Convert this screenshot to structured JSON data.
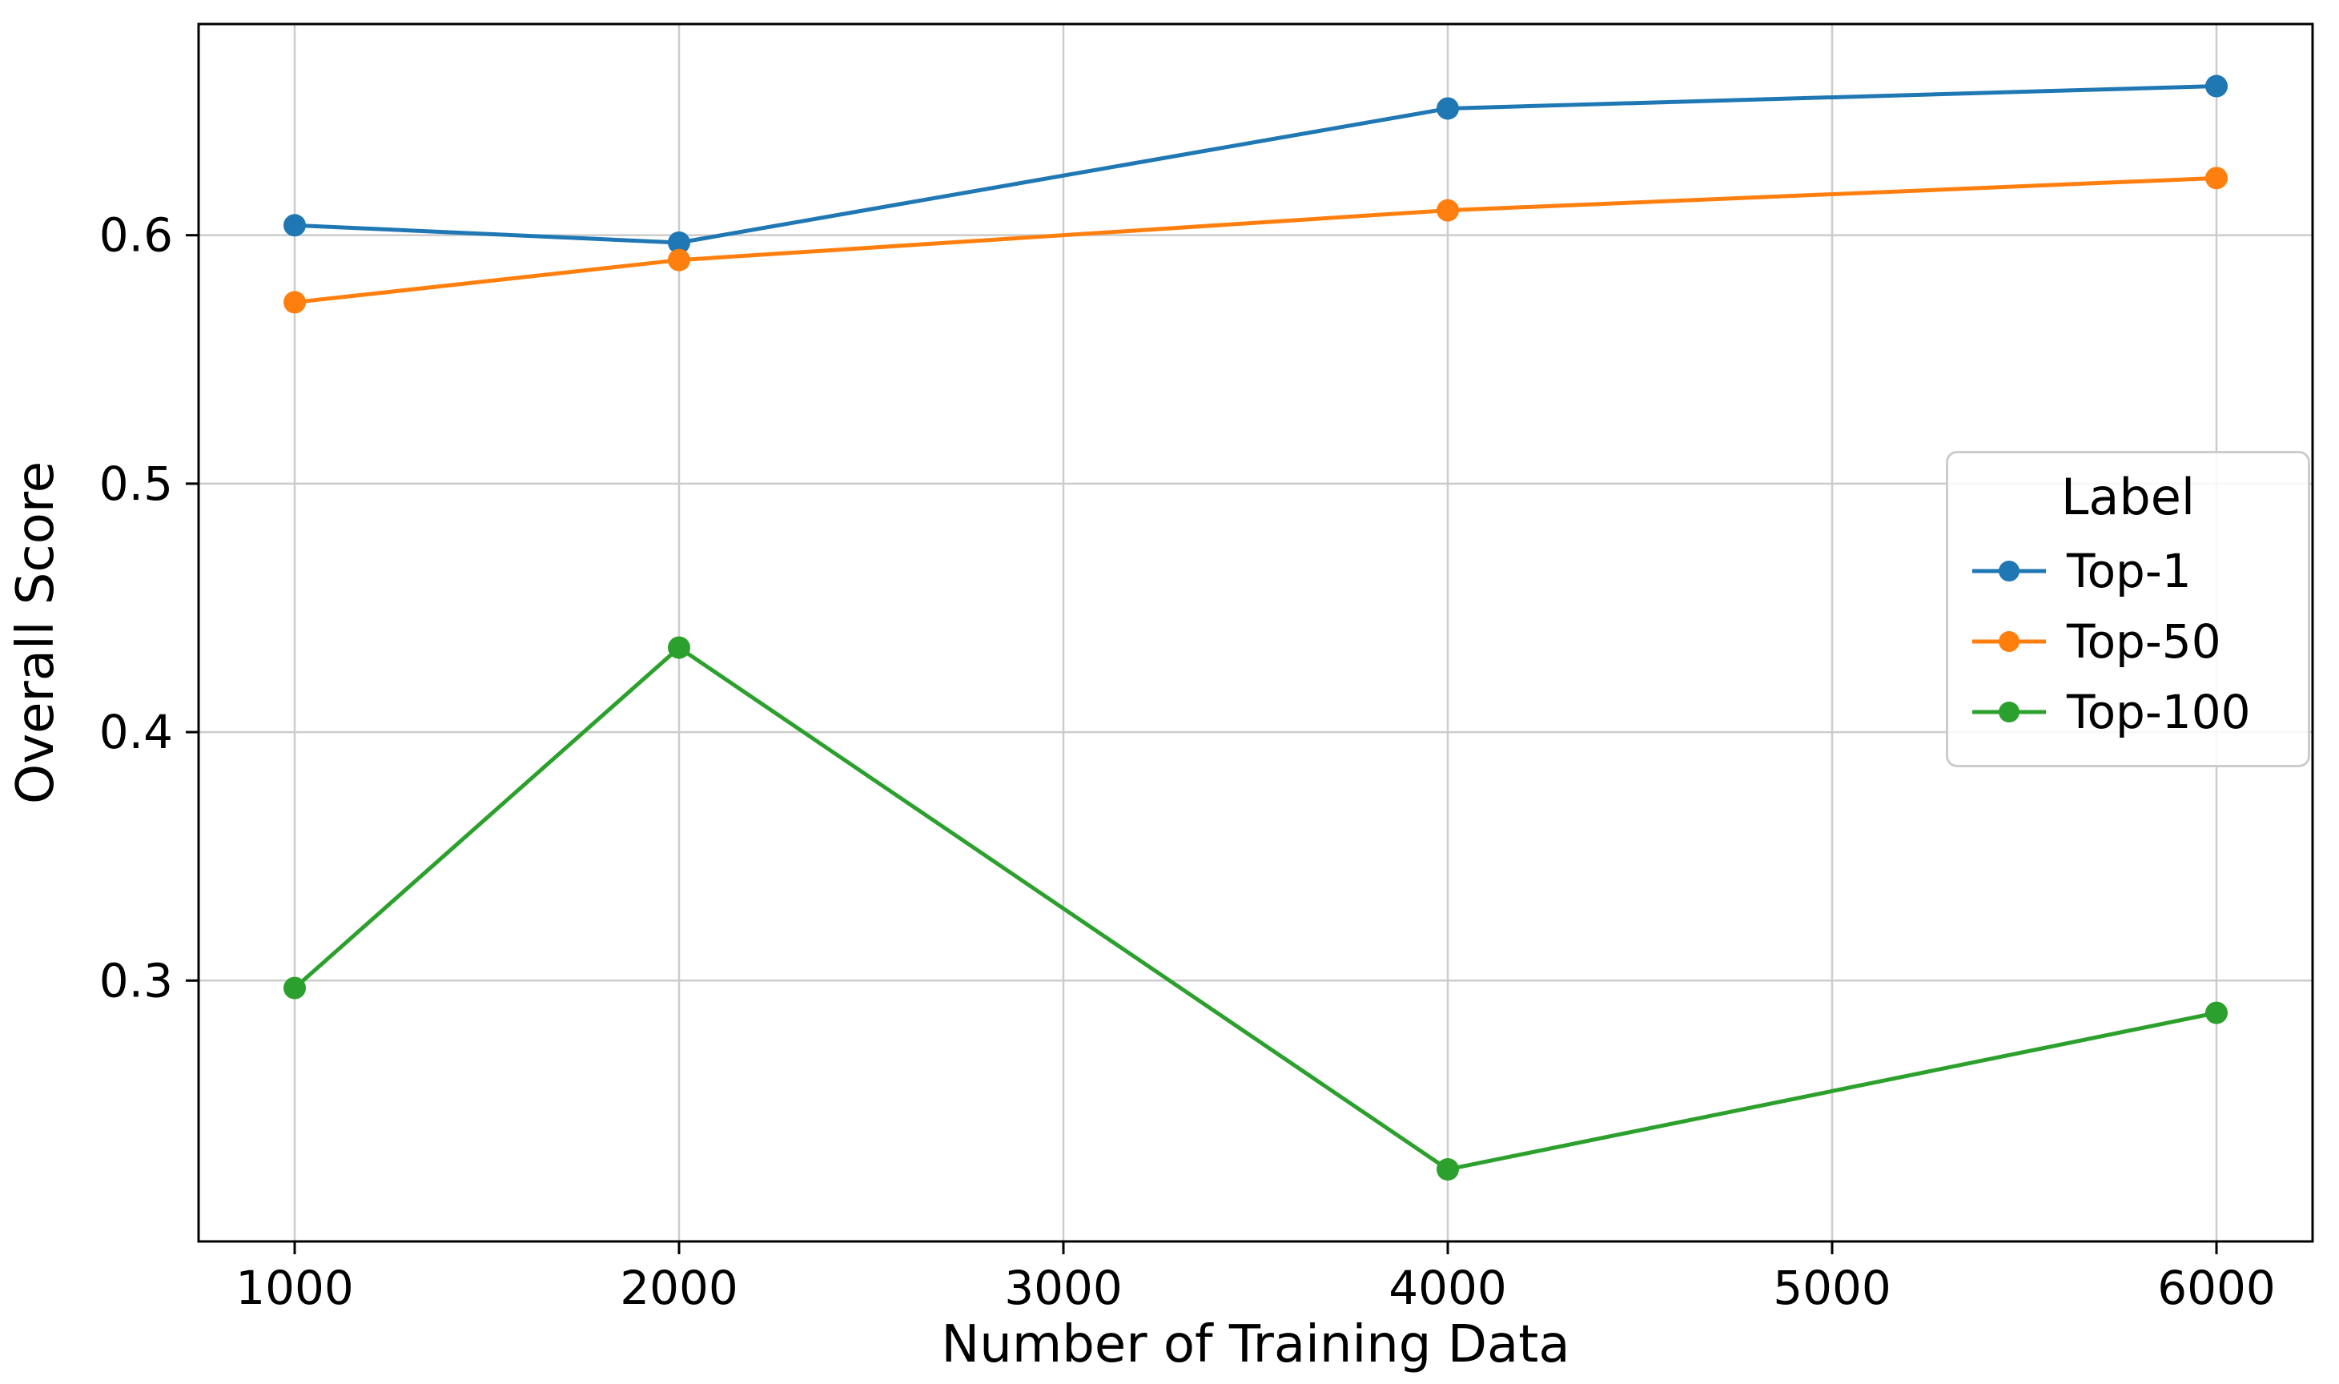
{
  "chart_data": {
    "type": "line",
    "title": "",
    "xlabel": "Number of Training Data",
    "ylabel": "Overall Score",
    "x": [
      1000,
      2000,
      4000,
      6000
    ],
    "series": [
      {
        "name": "Top-1",
        "color": "#1f77b4",
        "values": [
          0.604,
          0.597,
          0.651,
          0.66
        ]
      },
      {
        "name": "Top-50",
        "color": "#ff7f0e",
        "values": [
          0.573,
          0.59,
          0.61,
          0.623
        ]
      },
      {
        "name": "Top-100",
        "color": "#2ca02c",
        "values": [
          0.297,
          0.434,
          0.224,
          0.287
        ]
      }
    ],
    "xticks": [
      1000,
      2000,
      3000,
      4000,
      5000,
      6000
    ],
    "yticks": [
      0.3,
      0.4,
      0.5,
      0.6
    ],
    "xlim": [
      750,
      6250
    ],
    "ylim": [
      0.195,
      0.685
    ],
    "grid": true,
    "legend": {
      "title": "Label",
      "position": "center-right"
    },
    "colors": {
      "grid": "#cccccc",
      "axis": "#000000"
    }
  }
}
